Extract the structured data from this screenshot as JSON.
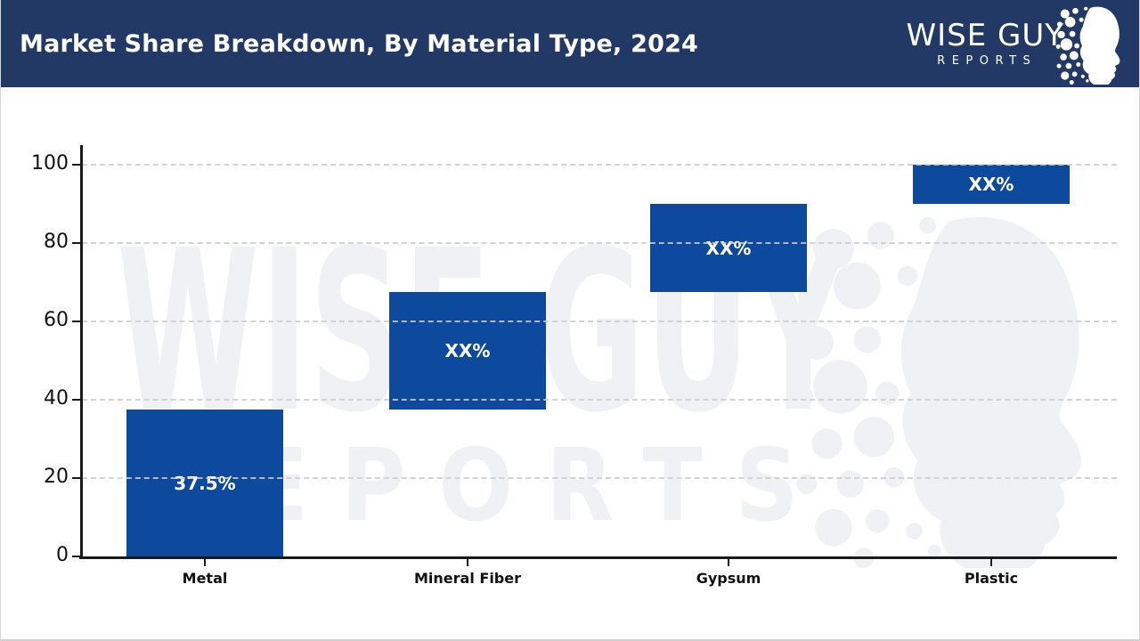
{
  "header": {
    "title": "Market Share Breakdown, By Material Type, 2024",
    "logo": {
      "primary": "WISE GUY",
      "secondary": "REPORTS"
    }
  },
  "watermark": {
    "primary": "WISE GUY",
    "secondary": "REPORTS"
  },
  "colors": {
    "header_bg": "#233965",
    "title": "#FFFFFF",
    "bar": "#0D4A9E",
    "bar_label": "#FFFFFF",
    "axis": "#1A1A1A",
    "gridline": "#CDCDCD",
    "watermark": "#F0F1F4"
  },
  "chart_data": {
    "type": "bar",
    "variant": "waterfall",
    "title": "Market Share Breakdown, By Material Type, 2024",
    "categories": [
      "Metal",
      "Mineral Fiber",
      "Gypsum",
      "Plastic"
    ],
    "segments": [
      {
        "category": "Metal",
        "start": 0,
        "end": 37.5,
        "label": "37.5%"
      },
      {
        "category": "Mineral Fiber",
        "start": 37.5,
        "end": 67.5,
        "label": "XX%"
      },
      {
        "category": "Gypsum",
        "start": 67.5,
        "end": 90,
        "label": "XX%"
      },
      {
        "category": "Plastic",
        "start": 90,
        "end": 100,
        "label": "XX%"
      }
    ],
    "xlabel": "",
    "ylabel": "",
    "ylim": [
      0,
      100
    ],
    "yticks": [
      0,
      20,
      40,
      60,
      80,
      100
    ],
    "grid": "horizontal-dashed",
    "legend": null
  }
}
